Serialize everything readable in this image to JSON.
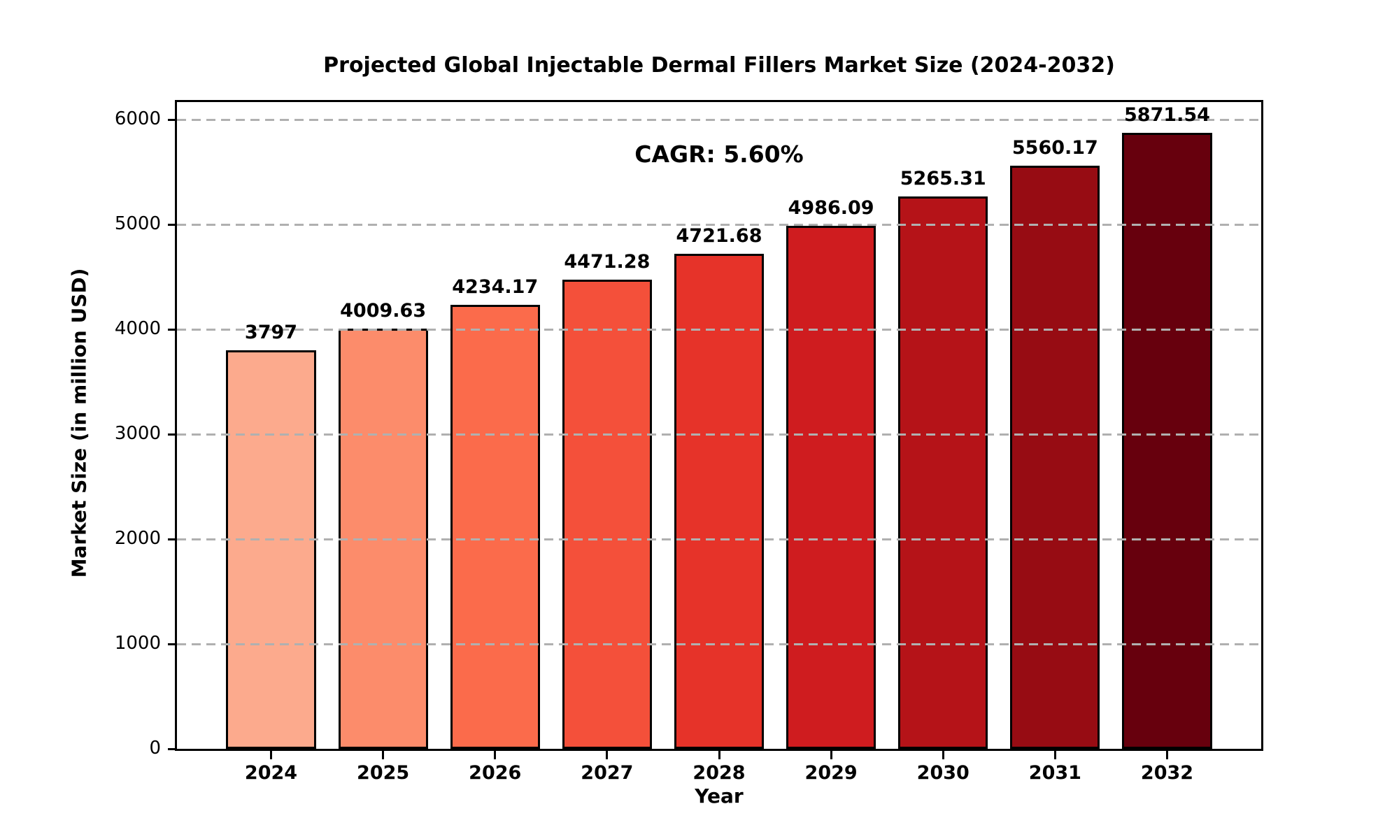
{
  "chart_data": {
    "type": "bar",
    "title": "Projected Global Injectable Dermal Fillers Market Size (2024-2032)",
    "xlabel": "Year",
    "ylabel": "Market Size (in million USD)",
    "annotation": "CAGR: 5.60%",
    "categories": [
      "2024",
      "2025",
      "2026",
      "2027",
      "2028",
      "2029",
      "2030",
      "2031",
      "2032"
    ],
    "values": [
      3797,
      4009.63,
      4234.17,
      4471.28,
      4721.68,
      4986.09,
      5265.31,
      5560.17,
      5871.54
    ],
    "value_labels": [
      "3797",
      "4009.63",
      "4234.17",
      "4471.28",
      "4721.68",
      "4986.09",
      "5265.31",
      "5560.17",
      "5871.54"
    ],
    "bar_colors": [
      "#fcaa8d",
      "#fc8c6b",
      "#fb6b4b",
      "#f4503a",
      "#e63329",
      "#cf1c1f",
      "#b51318",
      "#970c13",
      "#67000d"
    ],
    "bar_edge_color": "#000000",
    "bar_width": 0.8,
    "xlim": [
      -0.84,
      8.84
    ],
    "ylim": [
      0,
      6166.67
    ],
    "yticks": [
      0,
      1000,
      2000,
      3000,
      4000,
      5000,
      6000
    ],
    "ytick_labels": [
      "0",
      "1000",
      "2000",
      "3000",
      "4000",
      "5000",
      "6000"
    ],
    "grid": {
      "visible": true,
      "axis": "y",
      "style": "dashed",
      "color": "#b0b0b0",
      "on_top": true
    },
    "legend": null
  }
}
